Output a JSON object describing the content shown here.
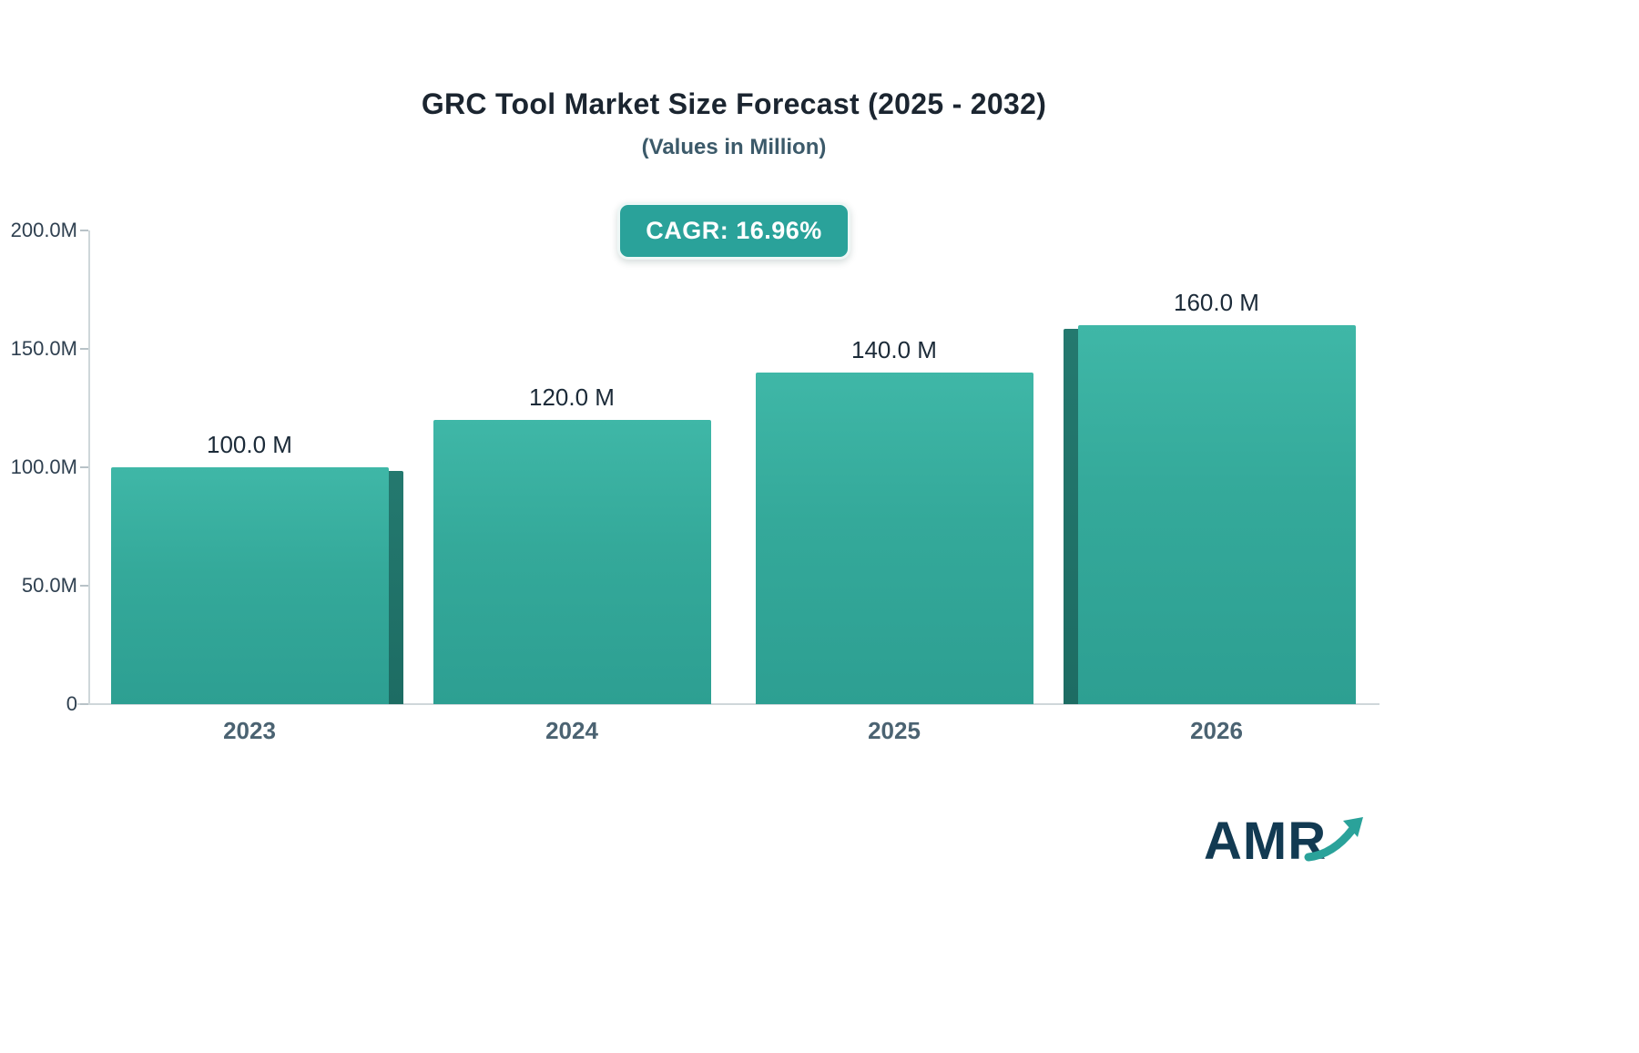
{
  "chart_data": {
    "type": "bar",
    "title": "GRC Tool Market Size Forecast (2025 - 2032)",
    "subtitle": "(Values in Million)",
    "badge": "CAGR: 16.96%",
    "categories": [
      "2023",
      "2024",
      "2025",
      "2026"
    ],
    "values": [
      100,
      120,
      140,
      160
    ],
    "value_labels": [
      "100.0 M",
      "120.0 M",
      "140.0 M",
      "160.0 M"
    ],
    "yticks": [
      {
        "value": 200,
        "label": "200.0M"
      },
      {
        "value": 150,
        "label": "150.0M"
      },
      {
        "value": 100,
        "label": "100.0M"
      },
      {
        "value": 50,
        "label": "50.0M"
      },
      {
        "value": 0,
        "label": "0"
      }
    ],
    "ylim": [
      0,
      200
    ],
    "xlabel": "",
    "ylabel": "",
    "grid": false,
    "legend": "none",
    "bar_edges": [
      "right",
      "none",
      "none",
      "left"
    ],
    "colors": {
      "bar_top": "#3fb7a7",
      "bar_bottom": "#2d9f92",
      "bar_side": "#1d6c63",
      "badge_bg": "#2aa29a",
      "badge_text": "#ffffff",
      "title_text": "#1b2530",
      "axis_text": "#2f4050"
    }
  },
  "logo": {
    "text": "AMR",
    "arrow_color": "#2aa29a"
  }
}
